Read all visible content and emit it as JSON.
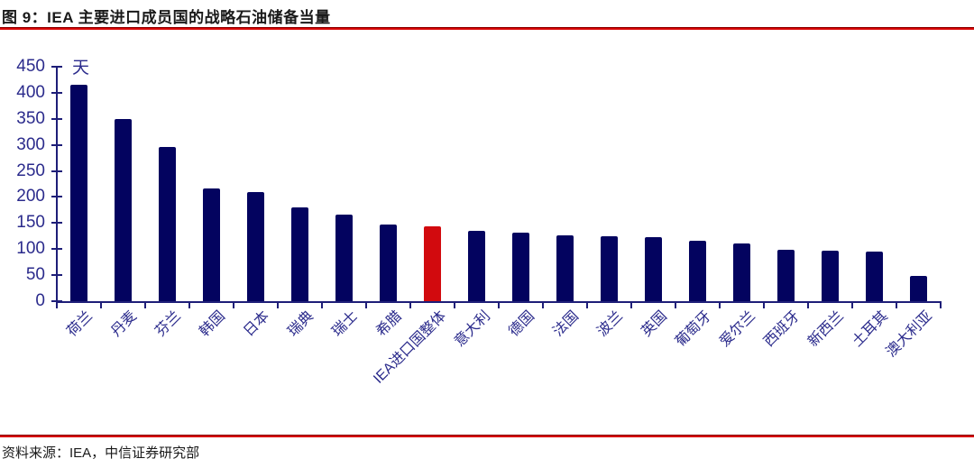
{
  "figure": {
    "title": "图 9：IEA 主要进口成员国的战略石油储备当量",
    "source": "资料来源：IEA，中信证券研究部"
  },
  "chart_data": {
    "type": "bar",
    "title": "IEA 主要进口成员国的战略石油储备当量",
    "unit_label": "天",
    "categories": [
      "荷兰",
      "丹麦",
      "芬兰",
      "韩国",
      "日本",
      "瑞典",
      "瑞士",
      "希腊",
      "IEA进口国整体",
      "意大利",
      "德国",
      "法国",
      "波兰",
      "英国",
      "葡萄牙",
      "爱尔兰",
      "西班牙",
      "新西兰",
      "土耳其",
      "澳大利亚"
    ],
    "values": [
      415,
      350,
      296,
      216,
      209,
      180,
      166,
      147,
      143,
      135,
      132,
      126,
      124,
      123,
      116,
      111,
      99,
      97,
      96,
      49
    ],
    "highlight_category": "IEA进口国整体",
    "highlight_index": 8,
    "ylim": [
      0,
      450
    ],
    "ytick_interval": 50,
    "yticks": [
      0,
      50,
      100,
      150,
      200,
      250,
      300,
      350,
      400,
      450
    ],
    "legend": "none",
    "grid": "off",
    "colors": {
      "bar": "#03035f",
      "highlight": "#d20a0e",
      "axis": "#1e1e78",
      "tick_label": "#2b2b8c",
      "rule_red": "#d60000",
      "text": "#1a1a1a"
    }
  }
}
